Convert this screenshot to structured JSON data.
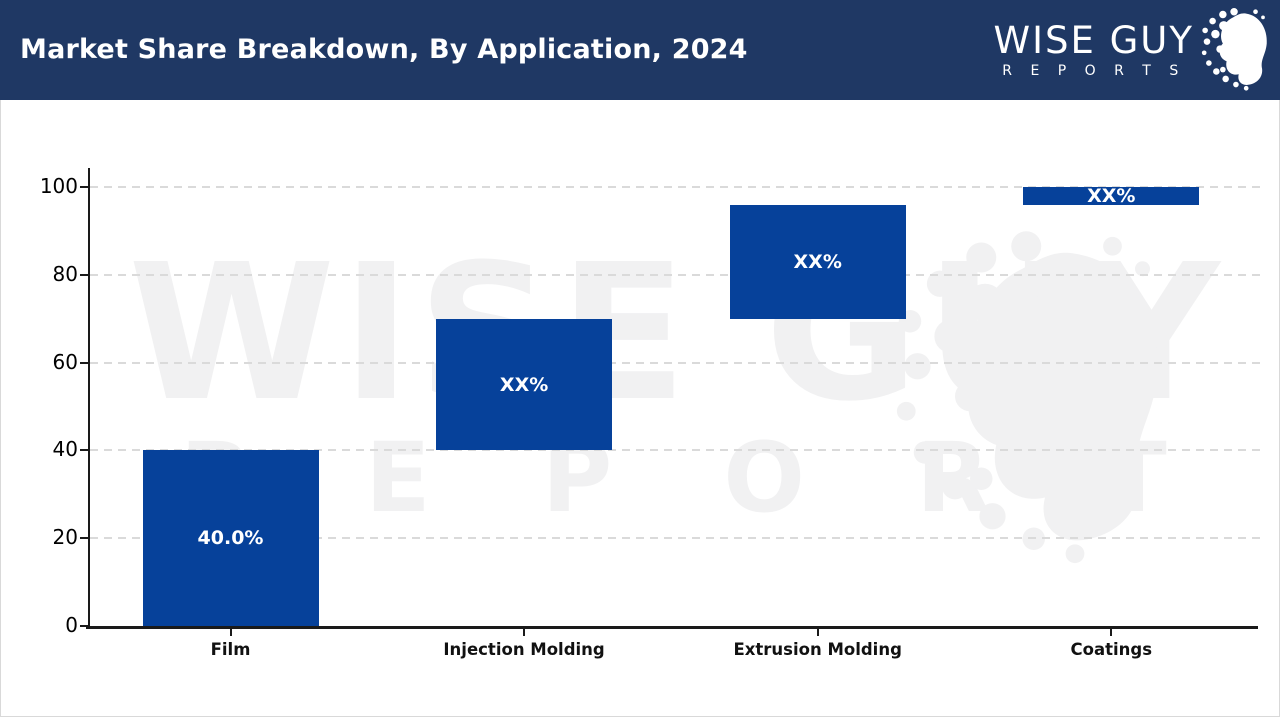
{
  "header": {
    "title": "Market Share Breakdown, By Application, 2024",
    "logo": {
      "line1": "WISE GUY",
      "line2": "R E P O R T S"
    }
  },
  "watermark": {
    "line1": "WISE GUY",
    "line2": "REPORTS"
  },
  "colors": {
    "header_bg": "#1f3864",
    "bar_blue": "#06419a",
    "gridline": "#dadada",
    "watermark": "#f1f1f2",
    "frame_border": "#d9d9d9",
    "axis": "#1a1a1a"
  },
  "chart_data": {
    "type": "bar",
    "variant": "waterfall",
    "title": "Market Share Breakdown, By Application, 2024",
    "xlabel": "",
    "ylabel": "",
    "categories": [
      "Film",
      "Injection Molding",
      "Extrusion Molding",
      "Coatings"
    ],
    "segments": [
      {
        "category": "Film",
        "start": 0,
        "end": 40,
        "value": 40,
        "label": "40.0%"
      },
      {
        "category": "Injection Molding",
        "start": 40,
        "end": 70,
        "value": 30,
        "label": "XX%"
      },
      {
        "category": "Extrusion Molding",
        "start": 70,
        "end": 96,
        "value": 26,
        "label": "XX%"
      },
      {
        "category": "Coatings",
        "start": 96,
        "end": 100,
        "value": 4,
        "label": "XX%"
      }
    ],
    "yticks": [
      0,
      20,
      40,
      60,
      80,
      100
    ],
    "ylim": [
      0,
      104
    ],
    "grid": "horizontal-dashed",
    "legend": "none",
    "bar_color": "#06419a"
  }
}
